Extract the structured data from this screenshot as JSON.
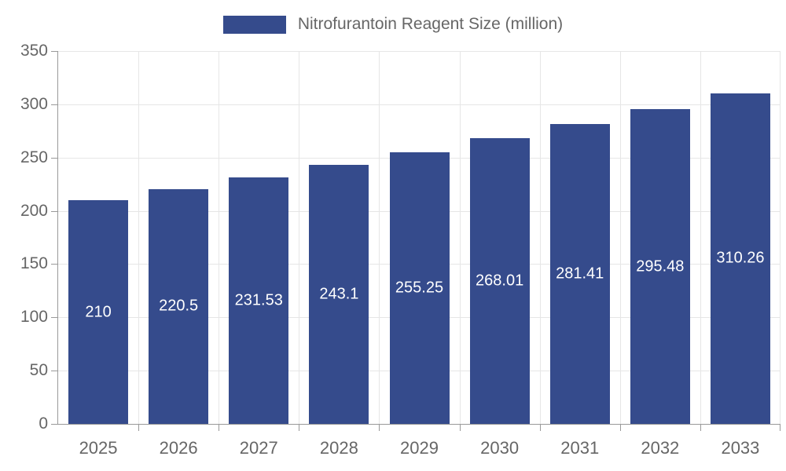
{
  "chart_data": {
    "type": "bar",
    "title": "Nitrofurantoin Reagent Size (million)",
    "legend": [
      "Nitrofurantoin Reagent Size (million)"
    ],
    "legend_position": "top-center",
    "categories": [
      "2025",
      "2026",
      "2027",
      "2028",
      "2029",
      "2030",
      "2031",
      "2032",
      "2033"
    ],
    "series": [
      {
        "name": "Nitrofurantoin Reagent Size (million)",
        "values": [
          210,
          220.5,
          231.53,
          243.1,
          255.25,
          268.01,
          281.41,
          295.48,
          310.26
        ]
      }
    ],
    "xlabel": "",
    "ylabel": "",
    "ylim": [
      0,
      350
    ],
    "y_ticks": [
      0,
      50,
      100,
      150,
      200,
      250,
      300,
      350
    ],
    "grid": true,
    "data_labels": "inside-center",
    "colors": {
      "bar": "#354b8c",
      "bar_label": "#ffffff",
      "grid_line": "#e6e6e6",
      "axis_line": "#999999",
      "tick_label": "#666666",
      "legend_text": "#666666",
      "background": "#ffffff"
    }
  }
}
